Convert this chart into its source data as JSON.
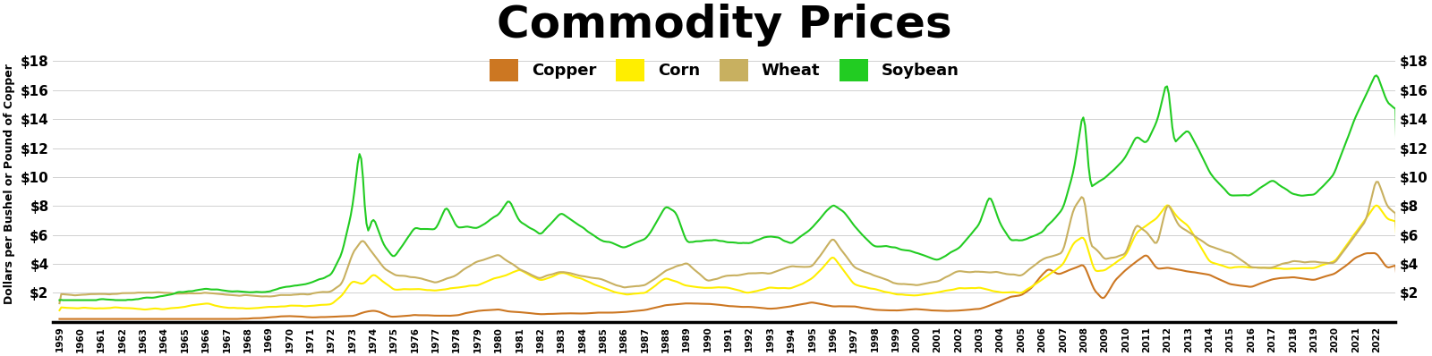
{
  "title": "Commodity Prices",
  "ylabel": "Dollars per Bushel or Pound of Copper",
  "ylim": [
    0,
    19
  ],
  "yticks": [
    2,
    4,
    6,
    8,
    10,
    12,
    14,
    16,
    18
  ],
  "ytick_labels": [
    "$2",
    "$4",
    "$6",
    "$8",
    "$10",
    "$12",
    "$14",
    "$16",
    "$18"
  ],
  "background_color": "#ffffff",
  "grid_color": "#d0d0d0",
  "title_fontsize": 36,
  "colors": {
    "copper": "#cc7722",
    "corn": "#ffee00",
    "wheat": "#c8b060",
    "soybean": "#22cc22"
  },
  "legend": {
    "copper": "Copper",
    "corn": "Corn",
    "wheat": "Wheat",
    "soybean": "Soybean"
  },
  "linewidth": 1.5
}
